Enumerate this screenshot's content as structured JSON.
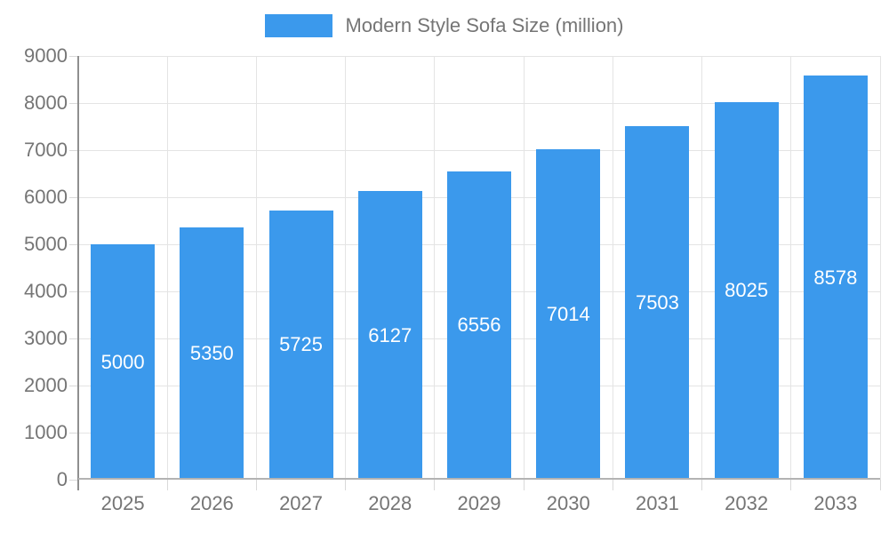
{
  "legend": {
    "label": "Modern Style Sofa Size (million)",
    "position": "top"
  },
  "chart_data": {
    "type": "bar",
    "title": "",
    "categories": [
      "2025",
      "2026",
      "2027",
      "2028",
      "2029",
      "2030",
      "2031",
      "2032",
      "2033"
    ],
    "series": [
      {
        "name": "Modern Style Sofa Size (million)",
        "values": [
          5000,
          5350,
          5725,
          6127,
          6556,
          7014,
          7503,
          8025,
          8578
        ]
      }
    ],
    "value_labels": [
      "5000",
      "5350",
      "5725",
      "6127",
      "6556",
      "7014",
      "7503",
      "8025",
      "8578"
    ],
    "value_label_position": "inside-middle",
    "xlabel": "",
    "ylabel": "",
    "ylim": [
      0,
      9000
    ],
    "y_tick_step": 1000,
    "y_tick_labels": [
      "0",
      "1000",
      "2000",
      "3000",
      "4000",
      "5000",
      "6000",
      "7000",
      "8000",
      "9000"
    ],
    "grid": true,
    "legend_position": "top",
    "colors": {
      "bar": "#3B99EC",
      "grid": "#E4E4E4",
      "tick": "#D9D9D9",
      "axis_y": "#8F8F8F",
      "axis_x": "#B3B3B3",
      "tick_label": "#757575",
      "value_label": "#FFFFFF",
      "background": "#FFFFFF"
    }
  }
}
